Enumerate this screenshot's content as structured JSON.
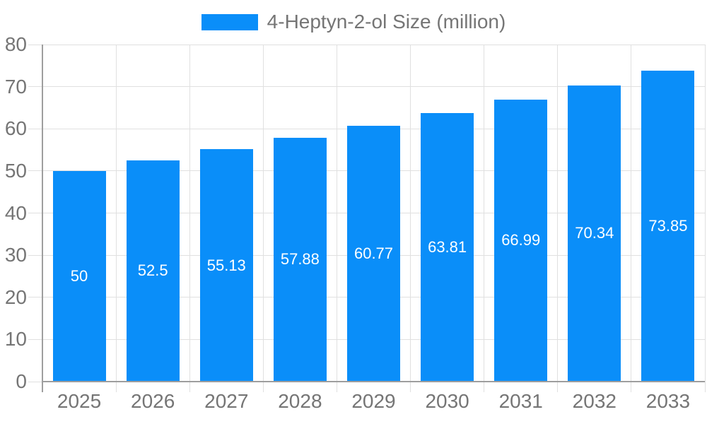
{
  "chart_data": {
    "type": "bar",
    "title": "4-Heptyn-2-ol Size (million)",
    "categories": [
      "2025",
      "2026",
      "2027",
      "2028",
      "2029",
      "2030",
      "2031",
      "2032",
      "2033"
    ],
    "values": [
      50,
      52.5,
      55.13,
      57.88,
      60.77,
      63.81,
      66.99,
      70.34,
      73.85
    ],
    "series_name": "4-Heptyn-2-ol Size (million)",
    "xlabel": "",
    "ylabel": "",
    "ylim": [
      0,
      80
    ],
    "ytick_interval": 10,
    "yticks": [
      "0",
      "10",
      "20",
      "30",
      "40",
      "50",
      "60",
      "70",
      "80"
    ],
    "grid": true,
    "legend_position": "top-center",
    "value_labels_position": "center-of-bar",
    "colors": {
      "bar": "#0a8ef9",
      "axis_text": "#757575",
      "legend_text": "#757575",
      "gridline": "#e0e0e0",
      "axis_line": "#9e9e9e",
      "value_label": "#ffffff",
      "background": "#ffffff"
    }
  }
}
